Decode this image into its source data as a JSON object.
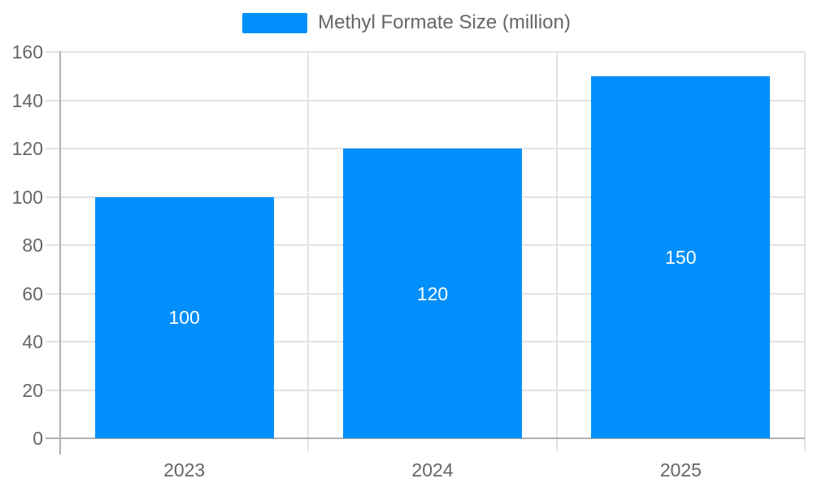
{
  "legend": {
    "label": "Methyl Formate Size (million)"
  },
  "colors": {
    "bar": "#008FFB",
    "axis_text": "#666666",
    "grid": "#e3e3e3",
    "axis_line": "#b1b1b1",
    "data_label": "#ffffff",
    "background": "#ffffff"
  },
  "chart_data": {
    "type": "bar",
    "categories": [
      "2023",
      "2024",
      "2025"
    ],
    "series": [
      {
        "name": "Methyl Formate Size (million)",
        "values": [
          100,
          120,
          150
        ]
      }
    ],
    "data_labels": [
      "100",
      "120",
      "150"
    ],
    "title": "",
    "xlabel": "",
    "ylabel": "",
    "ylim": [
      0,
      160
    ],
    "ytick_step": 20,
    "ytick_labels": [
      "0",
      "20",
      "40",
      "60",
      "80",
      "100",
      "120",
      "140",
      "160"
    ],
    "grid": true,
    "legend_position": "top"
  }
}
